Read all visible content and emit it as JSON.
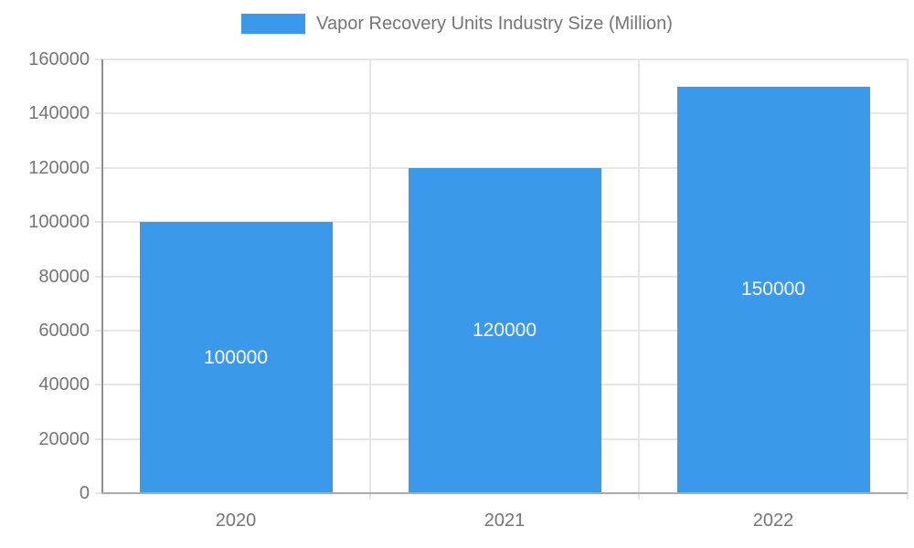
{
  "chart_data": {
    "type": "bar",
    "title": "Vapor Recovery Units Industry Size (Million)",
    "categories": [
      "2020",
      "2021",
      "2022"
    ],
    "values": [
      100000,
      120000,
      150000
    ],
    "value_labels": [
      "100000",
      "120000",
      "150000"
    ],
    "ylim": [
      0,
      160000
    ],
    "yticks": [
      0,
      20000,
      40000,
      60000,
      80000,
      100000,
      120000,
      140000,
      160000
    ],
    "ytick_labels": [
      "0",
      "20000",
      "40000",
      "60000",
      "80000",
      "100000",
      "120000",
      "140000",
      "160000"
    ],
    "grid": true,
    "legend_position": "top",
    "colors": {
      "bar": "#3B99EC",
      "axis_text": "#757575",
      "value_text": "#FFFFFF",
      "gridline": "#E6E6E6",
      "y_axis_line": "#8F8F8F",
      "x_axis_line": "#ABABAB",
      "background": "#FFFFFF"
    }
  }
}
